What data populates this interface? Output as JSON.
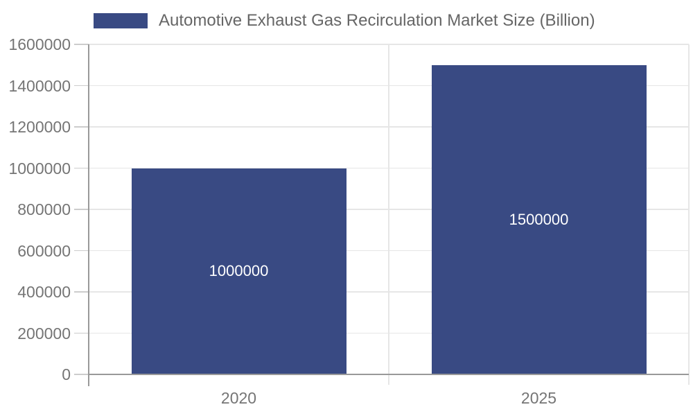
{
  "chart_data": {
    "type": "bar",
    "title": "Automotive Exhaust Gas Recirculation Market Size (Billion)",
    "categories": [
      "2020",
      "2025"
    ],
    "values": [
      1000000,
      1500000
    ],
    "data_labels": [
      "1000000",
      "1500000"
    ],
    "ylim": [
      0,
      1600000
    ],
    "yticks": [
      0,
      200000,
      400000,
      600000,
      800000,
      1000000,
      1200000,
      1400000,
      1600000
    ],
    "xlabel": "",
    "ylabel": "",
    "grid": true,
    "legend_position": "top-left",
    "colors": {
      "bar": "#394a83",
      "gridline": "#e6e6e6",
      "axis_line": "#999999",
      "tick_line": "#cccccc",
      "tick_label": "#757575",
      "value_label": "#ffffff",
      "legend_text": "#666666",
      "background": "#ffffff"
    }
  }
}
